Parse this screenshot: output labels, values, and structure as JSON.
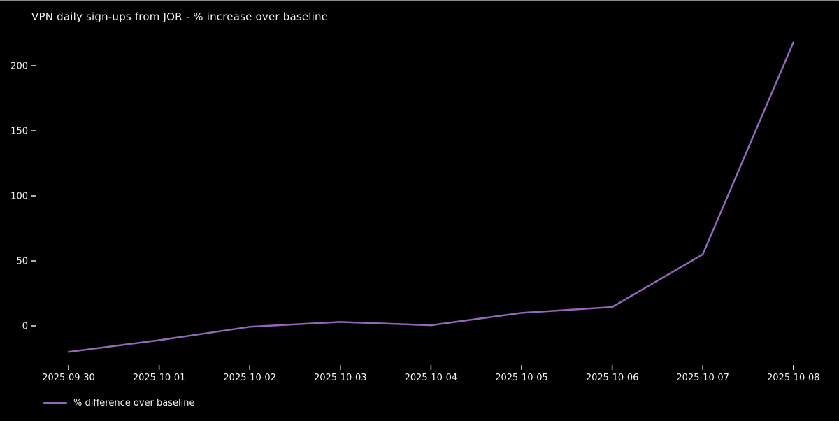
{
  "chart_data": {
    "type": "line",
    "title": "VPN daily sign-ups from JOR - % increase over baseline",
    "x": [
      "2025-09-30",
      "2025-10-01",
      "2025-10-02",
      "2025-10-03",
      "2025-10-04",
      "2025-10-05",
      "2025-10-06",
      "2025-10-07",
      "2025-10-08"
    ],
    "series": [
      {
        "name": "% difference over baseline",
        "values": [
          -20,
          -11,
          -0.7,
          3,
          0.5,
          10,
          14.5,
          55,
          218
        ],
        "color": "#9467bd"
      }
    ],
    "yticks": [
      0,
      50,
      100,
      150,
      200
    ],
    "ylim": [
      -30,
      232
    ],
    "xlabel": "",
    "ylabel": "",
    "grid": false,
    "legend_position": "lower-left",
    "background_color": "#000000",
    "text_color": "#f2f2f2",
    "tick_color": "#e8e8e8"
  }
}
